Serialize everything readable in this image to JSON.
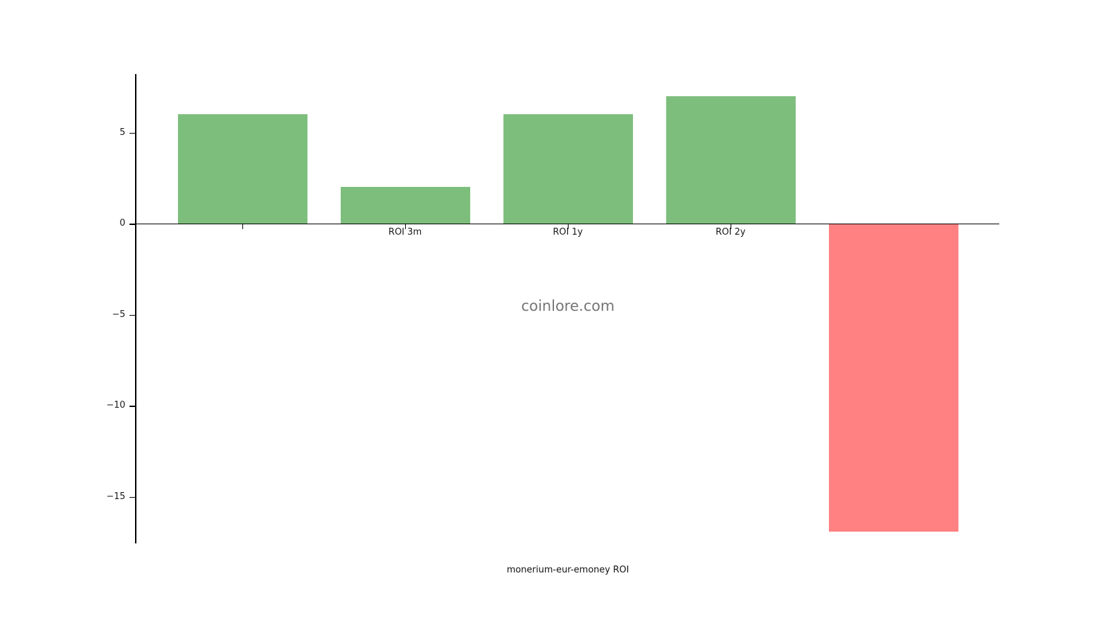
{
  "chart_data": {
    "type": "bar",
    "title": "monerium-eur-emoney ROI",
    "watermark": "coinlore.com",
    "categories": [
      "",
      "ROI 3m",
      "ROI 1y",
      "ROI 2y",
      ""
    ],
    "values": [
      6,
      2,
      6,
      7,
      -16.9
    ],
    "series": [
      {
        "name": "ROI",
        "values": [
          6,
          2,
          6,
          7,
          -16.9
        ]
      }
    ],
    "yticks": [
      5,
      0,
      -5,
      -10,
      -15
    ],
    "ytick_labels": [
      "5",
      "0",
      "−5",
      "−10",
      "−15"
    ],
    "ylim": [
      -17.6,
      8.2
    ],
    "xlabel": "",
    "ylabel": "",
    "grid": false,
    "legend_position": "none",
    "colors": {
      "positive": "#7dbe7d",
      "negative": "#ff8181",
      "axis": "#000000",
      "text": "#1a1a1a",
      "watermark": "#757575"
    }
  }
}
